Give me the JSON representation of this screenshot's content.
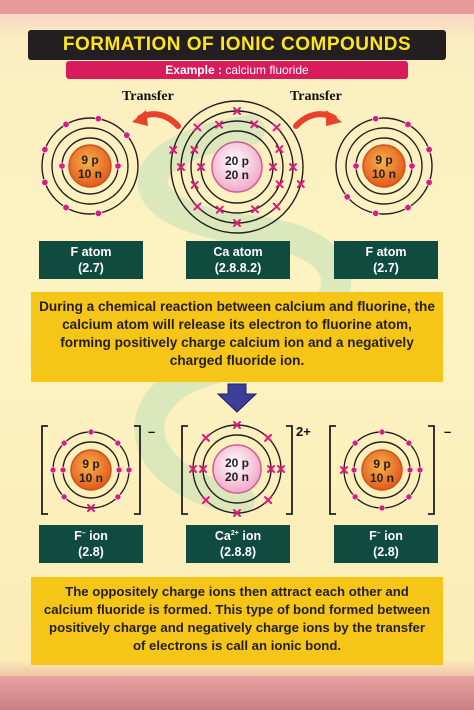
{
  "title": "FORMATION OF IONIC COMPOUNDS",
  "example": {
    "prefix": "Example :",
    "text": "calcium fluoride"
  },
  "transfer_left": "Transfer",
  "transfer_right": "Transfer",
  "atoms": [
    {
      "nucleus_p": "9 p",
      "nucleus_n": "10 n",
      "label1": "F atom",
      "label2": "(2.7)"
    },
    {
      "nucleus_p": "20 p",
      "nucleus_n": "20 n",
      "label1": "Ca atom",
      "label2": "(2.8.8.2)"
    },
    {
      "nucleus_p": "9 p",
      "nucleus_n": "10 n",
      "label1": "F atom",
      "label2": "(2.7)"
    }
  ],
  "paragraph1": "During a chemical reaction between calcium and fluorine, the calcium atom will release its electron to fluorine atom, forming positively charge calcium ion and a negatively charged fluoride ion.",
  "ions": [
    {
      "nucleus_p": "9 p",
      "nucleus_n": "10 n",
      "label_base": "F",
      "label_sup": "–",
      "label_rest": " ion",
      "label2": "(2.8)",
      "charge": "–"
    },
    {
      "nucleus_p": "20 p",
      "nucleus_n": "20 n",
      "label_base": "Ca",
      "label_sup": "2+",
      "label_rest": " ion",
      "label2": "(2.8.8)",
      "charge": "2+"
    },
    {
      "nucleus_p": "9 p",
      "nucleus_n": "10 n",
      "label_base": "F",
      "label_sup": "–",
      "label_rest": " ion",
      "label2": "(2.8)",
      "charge": "–"
    }
  ],
  "paragraph2": "The oppositely charge ions then attract each other and calcium fluoride is formed. This type of bond formed between positively charge and negatively charge ions by the transfer of electrons is call an ionic bond.",
  "colors": {
    "title_bg": "#231f20",
    "title_text": "#ffe61a",
    "example_bg": "#d81b5a",
    "label_bg": "#0f4b3e",
    "para_bg": "#f5c518",
    "electron": "#e0197d",
    "arrow": "#e8412c",
    "down_arrow": "#3b3f9a"
  }
}
